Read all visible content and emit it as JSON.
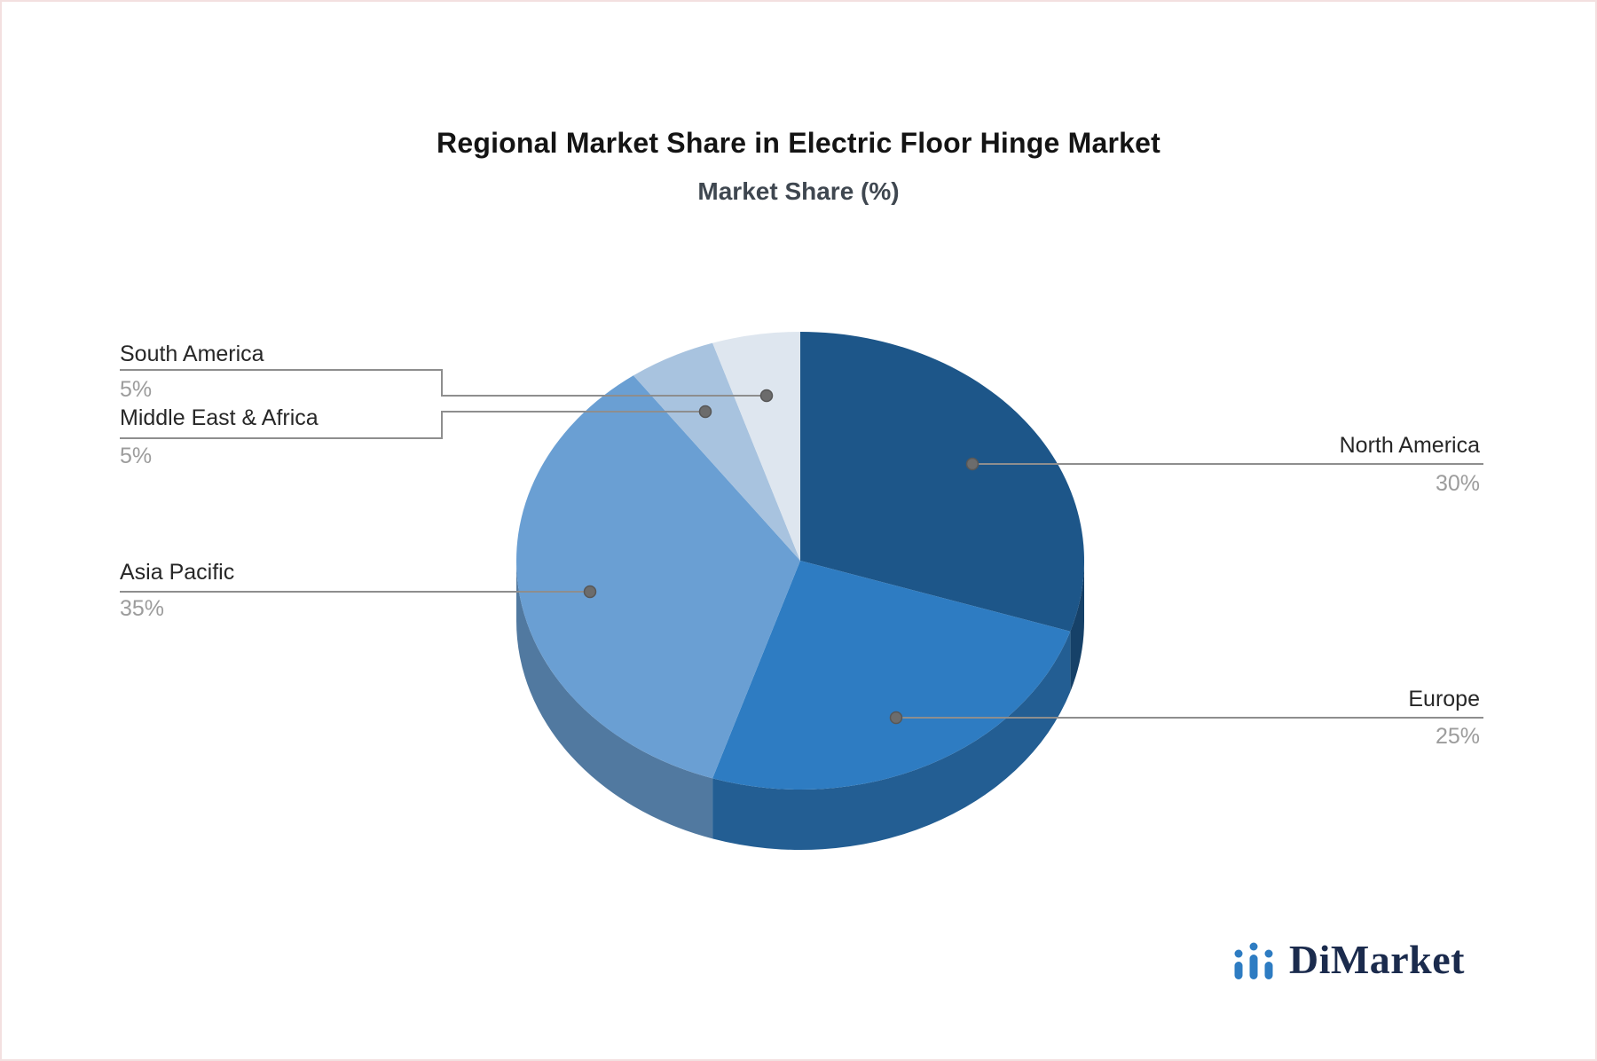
{
  "title": "Regional Market Share in Electric Floor Hinge Market",
  "subtitle": "Market Share (%)",
  "brand": {
    "name": "DiMarket"
  },
  "colors": {
    "connector_line": "#8e8e8e",
    "connector_dot": "#6c6c6c",
    "title_text": "#141414",
    "subtitle_text": "#3f4750",
    "label_text": "#272727",
    "value_text": "#9c9c9c",
    "logo_blue": "#2e7cc2",
    "logo_navy": "#1b2b4d"
  },
  "chart_data": {
    "type": "pie",
    "style": "3d",
    "title": "Regional Market Share in Electric Floor Hinge Market",
    "subtitle": "Market Share (%)",
    "unit": "%",
    "start_angle_deg": 0,
    "direction": "clockwise",
    "legend_position": "callout-labels",
    "slices": [
      {
        "label": "North America",
        "value": 30,
        "display": "30%",
        "color": "#1d5689"
      },
      {
        "label": "Europe",
        "value": 25,
        "display": "25%",
        "color": "#2e7cc2"
      },
      {
        "label": "Asia Pacific",
        "value": 35,
        "display": "35%",
        "color": "#6a9fd3"
      },
      {
        "label": "Middle East & Africa",
        "value": 5,
        "display": "5%",
        "color": "#a8c3df"
      },
      {
        "label": "South America",
        "value": 5,
        "display": "5%",
        "color": "#dee6ef"
      }
    ]
  }
}
